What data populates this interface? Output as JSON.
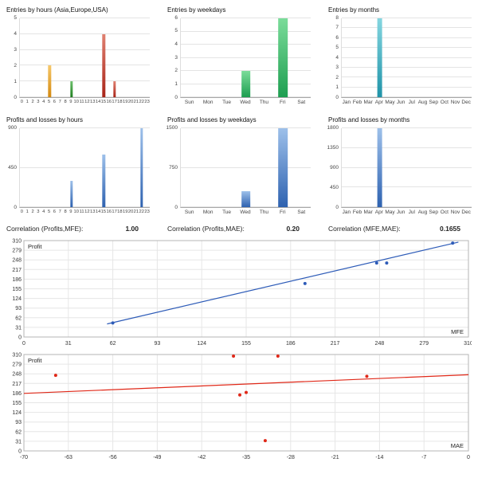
{
  "correlations": [
    {
      "label": "Correlation (Profits,MFE):",
      "value": "1.00"
    },
    {
      "label": "Correlation (Profits,MAE):",
      "value": "0.20"
    },
    {
      "label": "Correlation (MFE,MAE):",
      "value": "0.1655"
    }
  ],
  "chart_data": [
    {
      "id": "entries-by-hours",
      "type": "bar",
      "title": "Entries by hours (Asia,Europe,USA)",
      "categories": [
        "0",
        "1",
        "2",
        "3",
        "4",
        "5",
        "6",
        "7",
        "8",
        "9",
        "10",
        "11",
        "12",
        "13",
        "14",
        "15",
        "16",
        "17",
        "18",
        "19",
        "20",
        "21",
        "22",
        "23"
      ],
      "ylim": [
        0,
        5
      ],
      "yticks": [
        0,
        1,
        2,
        3,
        4,
        5
      ],
      "bars": [
        {
          "category": "5",
          "value": 2,
          "series": "Asia",
          "color_top": "#f6c86a",
          "color_bottom": "#d4890f"
        },
        {
          "category": "9",
          "value": 1,
          "series": "Europe",
          "color_top": "#6cc06c",
          "color_bottom": "#1e7d1e"
        },
        {
          "category": "15",
          "value": 4,
          "series": "USA",
          "color_top": "#e08070",
          "color_bottom": "#a82418"
        },
        {
          "category": "17",
          "value": 1,
          "series": "USA",
          "color_top": "#e08070",
          "color_bottom": "#a82418"
        }
      ]
    },
    {
      "id": "entries-by-weekdays",
      "type": "bar",
      "title": "Entries by weekdays",
      "categories": [
        "Sun",
        "Mon",
        "Tue",
        "Wed",
        "Thu",
        "Fri",
        "Sat"
      ],
      "ylim": [
        0,
        6
      ],
      "yticks": [
        0,
        1,
        2,
        3,
        4,
        5,
        6
      ],
      "bars": [
        {
          "category": "Wed",
          "value": 2,
          "color_top": "#7bdc9a",
          "color_bottom": "#1d9e50"
        },
        {
          "category": "Fri",
          "value": 6,
          "color_top": "#7bdc9a",
          "color_bottom": "#1d9e50"
        }
      ]
    },
    {
      "id": "entries-by-months",
      "type": "bar",
      "title": "Entries by months",
      "categories": [
        "Jan",
        "Feb",
        "Mar",
        "Apr",
        "May",
        "Jun",
        "Jul",
        "Aug",
        "Sep",
        "Oct",
        "Nov",
        "Dec"
      ],
      "ylim": [
        0,
        8
      ],
      "yticks": [
        0,
        1,
        2,
        3,
        4,
        5,
        6,
        7,
        8
      ],
      "bars": [
        {
          "category": "Apr",
          "value": 8,
          "color_top": "#85d6e0",
          "color_bottom": "#1f93a8"
        }
      ]
    },
    {
      "id": "pl-by-hours",
      "type": "bar",
      "title": "Profits and losses by hours",
      "categories": [
        "0",
        "1",
        "2",
        "3",
        "4",
        "5",
        "6",
        "7",
        "8",
        "9",
        "10",
        "11",
        "12",
        "13",
        "14",
        "15",
        "16",
        "17",
        "18",
        "19",
        "20",
        "21",
        "22",
        "23"
      ],
      "ylim": [
        0,
        900
      ],
      "yticks": [
        0,
        450,
        900
      ],
      "bars": [
        {
          "category": "9",
          "value": 300,
          "color_top": "#9dc0ea",
          "color_bottom": "#2e62b0"
        },
        {
          "category": "15",
          "value": 600,
          "color_top": "#9dc0ea",
          "color_bottom": "#2e62b0"
        },
        {
          "category": "22",
          "value": 900,
          "color_top": "#9dc0ea",
          "color_bottom": "#2e62b0"
        }
      ]
    },
    {
      "id": "pl-by-weekdays",
      "type": "bar",
      "title": "Profits and losses by weekdays",
      "categories": [
        "Sun",
        "Mon",
        "Tue",
        "Wed",
        "Thu",
        "Fri",
        "Sat"
      ],
      "ylim": [
        0,
        1500
      ],
      "yticks": [
        0,
        750,
        1500
      ],
      "bars": [
        {
          "category": "Wed",
          "value": 300,
          "color_top": "#9dc0ea",
          "color_bottom": "#2e62b0"
        },
        {
          "category": "Fri",
          "value": 1500,
          "color_top": "#9dc0ea",
          "color_bottom": "#2e62b0"
        }
      ]
    },
    {
      "id": "pl-by-months",
      "type": "bar",
      "title": "Profits and losses by months",
      "categories": [
        "Jan",
        "Feb",
        "Mar",
        "Apr",
        "May",
        "Jun",
        "Jul",
        "Aug",
        "Sep",
        "Oct",
        "Nov",
        "Dec"
      ],
      "ylim": [
        0,
        1800
      ],
      "yticks": [
        0,
        450,
        900,
        1350,
        1800
      ],
      "bars": [
        {
          "category": "Apr",
          "value": 1800,
          "color_top": "#9dc0ea",
          "color_bottom": "#2e62b0"
        }
      ]
    },
    {
      "id": "profit-vs-mfe",
      "type": "scatter",
      "ylabel": "Profit",
      "xlabel": "MFE",
      "xlim": [
        0,
        310
      ],
      "xticks": [
        0,
        31,
        62,
        93,
        124,
        155,
        186,
        217,
        248,
        279,
        310
      ],
      "ylim": [
        0,
        310
      ],
      "yticks": [
        0,
        31,
        62,
        93,
        124,
        155,
        186,
        217,
        248,
        279,
        310
      ],
      "color": "#2e5cb8",
      "points": [
        [
          62,
          45
        ],
        [
          196,
          172
        ],
        [
          246,
          238
        ],
        [
          253,
          238
        ],
        [
          299,
          302
        ]
      ],
      "trendline": [
        [
          58,
          42
        ],
        [
          303,
          305
        ]
      ]
    },
    {
      "id": "profit-vs-mae",
      "type": "scatter",
      "ylabel": "Profit",
      "xlabel": "MAE",
      "xlim": [
        -70,
        0
      ],
      "xticks": [
        -70,
        -63,
        -56,
        -49,
        -42,
        -35,
        -28,
        -21,
        -14,
        -7,
        0
      ],
      "ylim": [
        0,
        310
      ],
      "yticks": [
        0,
        31,
        62,
        93,
        124,
        155,
        186,
        217,
        248,
        279,
        310
      ],
      "color": "#e02818",
      "points": [
        [
          -65,
          243
        ],
        [
          -37,
          305
        ],
        [
          -30,
          305
        ],
        [
          -36,
          180
        ],
        [
          -35,
          188
        ],
        [
          -32,
          33
        ],
        [
          -16,
          240
        ]
      ],
      "trendline": [
        [
          -70,
          185
        ],
        [
          0,
          245
        ]
      ]
    }
  ]
}
